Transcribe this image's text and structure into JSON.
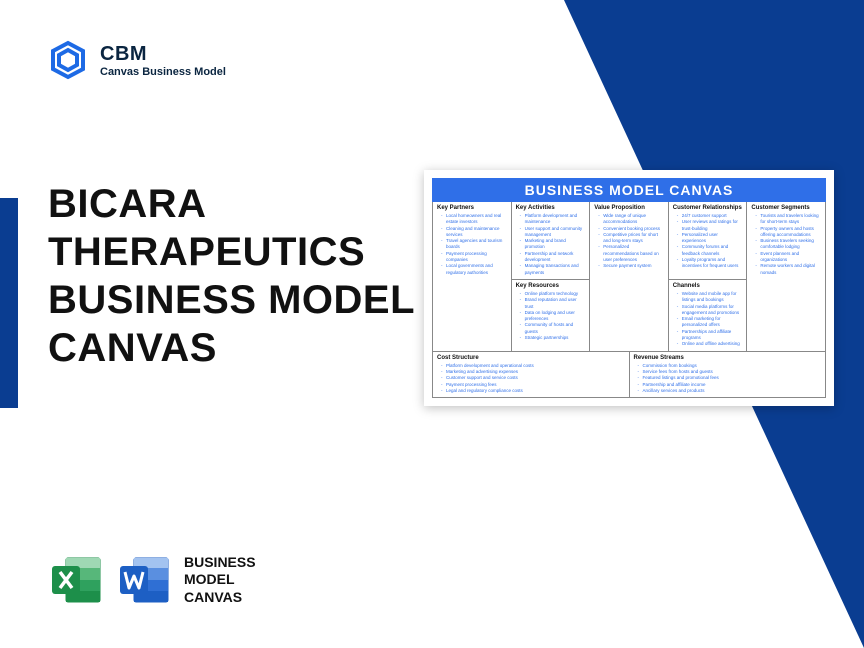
{
  "brand": {
    "abbr": "CBM",
    "full": "Canvas Business Model",
    "logo_color": "#1d6ae5"
  },
  "title": "BICARA THERAPEUTICS BUSINESS MODEL CANVAS",
  "footer": {
    "label": "BUSINESS MODEL CANVAS",
    "excel_color": "#1d8f4a",
    "word_color": "#1d5fc4"
  },
  "canvas": {
    "title": "BUSINESS MODEL CANVAS",
    "title_bg": "#2f6fe8",
    "sections": {
      "key_partners": {
        "heading": "Key Partners",
        "items": [
          "Local homeowners and real estate investors",
          "Cleaning and maintenance services",
          "Travel agencies and tourism boards",
          "Payment processing companies",
          "Local governments and regulatory authorities"
        ]
      },
      "key_activities": {
        "heading": "Key Activities",
        "items": [
          "Platform development and maintenance",
          "User support and community management",
          "Marketing and brand promotion",
          "Partnership and network development",
          "Managing transactions and payments"
        ]
      },
      "key_resources": {
        "heading": "Key Resources",
        "items": [
          "Online platform technology",
          "Brand reputation and user trust",
          "Data on lodging and user preferences",
          "Community of hosts and guests",
          "Strategic partnerships"
        ]
      },
      "value_proposition": {
        "heading": "Value Proposition",
        "items": [
          "Wide range of unique accommodations",
          "Convenient booking process",
          "Competitive prices for short and long-term stays",
          "Personalized recommendations based on user preferences",
          "Secure payment system"
        ]
      },
      "customer_relationships": {
        "heading": "Customer Relationships",
        "items": [
          "24/7 customer support",
          "User reviews and ratings for trust-building",
          "Personalized user experiences",
          "Community forums and feedback channels",
          "Loyalty programs and incentives for frequent users"
        ]
      },
      "channels": {
        "heading": "Channels",
        "items": [
          "Website and mobile app for listings and bookings",
          "Social media platforms for engagement and promotions",
          "Email marketing for personalized offers",
          "Partnerships and affiliate programs",
          "Online and offline advertising"
        ]
      },
      "customer_segments": {
        "heading": "Customer Segments",
        "items": [
          "Tourists and travelers looking for short-term stays",
          "Property owners and hosts offering accommodations",
          "Business travelers seeking comfortable lodging",
          "Event planners and organizations",
          "Remote workers and digital nomads"
        ]
      },
      "cost_structure": {
        "heading": "Cost Structure",
        "items": [
          "Platform development and operational costs",
          "Marketing and advertising expenses",
          "Customer support and service costs",
          "Payment processing fees",
          "Legal and regulatory compliance costs"
        ]
      },
      "revenue_streams": {
        "heading": "Revenue Streams",
        "items": [
          "Commission from bookings",
          "Service fees from hosts and guests",
          "Featured listings and promotional fees",
          "Partnership and affiliate income",
          "Ancillary services and products"
        ]
      }
    }
  },
  "colors": {
    "triangle": "#0a3d91",
    "accent_bar": "#0a3d91",
    "item_text": "#2f6fe8"
  }
}
